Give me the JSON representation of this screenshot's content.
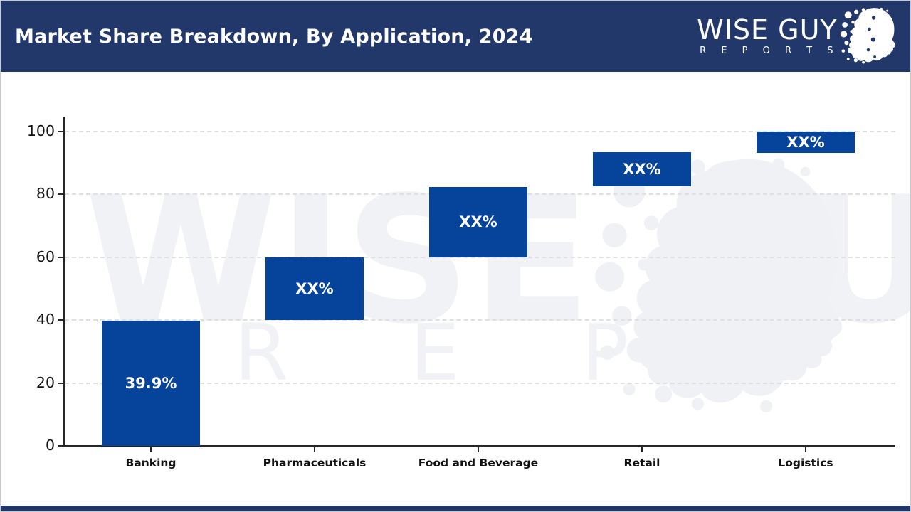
{
  "header": {
    "title": "Market Share Breakdown, By Application, 2024",
    "logo": {
      "line1": "WISE GUY",
      "line2": "R E P O R T S"
    }
  },
  "watermark": {
    "line1": "WISE GUY",
    "line2": "R E P O R T S"
  },
  "colors": {
    "header_bg": "#22386a",
    "bar_blue": "#06449c",
    "grid": "#e0e0e0",
    "axis": "#262626",
    "watermark": "#f1f2f5"
  },
  "chart_data": {
    "type": "bar",
    "subtype": "waterfall",
    "title": "Market Share Breakdown, By Application, 2024",
    "categories": [
      "Banking",
      "Pharmaceuticals",
      "Food and Beverage",
      "Retail",
      "Logistics"
    ],
    "segments": [
      {
        "category": "Banking",
        "start": 0,
        "end": 39.9,
        "label": "39.9%"
      },
      {
        "category": "Pharmaceuticals",
        "start": 40,
        "end": 60,
        "label": "XX%"
      },
      {
        "category": "Food and Beverage",
        "start": 60,
        "end": 82.4,
        "label": "XX%"
      },
      {
        "category": "Retail",
        "start": 82.6,
        "end": 93.4,
        "label": "XX%"
      },
      {
        "category": "Logistics",
        "start": 93.2,
        "end": 100,
        "label": "XX%"
      }
    ],
    "ylim": [
      0,
      100
    ],
    "yticks": [
      0,
      20,
      40,
      60,
      80,
      100
    ],
    "xlabel": "",
    "ylabel": "",
    "grid": "horizontal-dashed",
    "legend": "none",
    "bar_color": "#06449c"
  }
}
